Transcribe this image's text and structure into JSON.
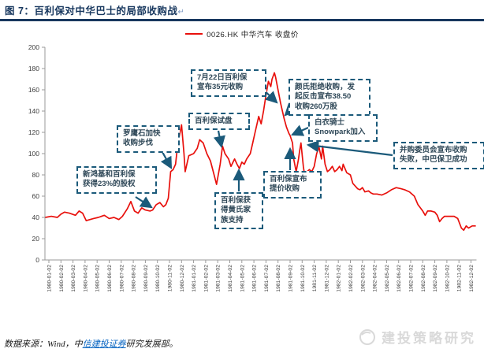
{
  "header": {
    "title": "图 7：百利保对中华巴士的局部收购战",
    "para_mark": "↵"
  },
  "legend": {
    "label": "0026.HK 中华汽车 收盘价",
    "line_color": "#e8100c"
  },
  "footer": {
    "prefix": "数据来源：Wind，中",
    "link": "信建投证券",
    "suffix": "研究发展部。"
  },
  "watermark": {
    "text": "建投策略研究"
  },
  "colors": {
    "accent_navy": "#17375e",
    "series_red": "#e8100c",
    "annotation_blue": "#1b5a7a",
    "axis_gray": "#9a9a9a",
    "tick_text": "#3f3f3f"
  },
  "annotations": [
    {
      "text": "罗鹰石加快\n收购步伐"
    },
    {
      "text": "新鸿基和百利保\n获得23%的股权"
    },
    {
      "text": "百利保试盘"
    },
    {
      "text": "7月22日百利保\n宣布35元收购"
    },
    {
      "text": "颜氏拒绝收购，发\n起反击宣布38.50\n收购260万股"
    },
    {
      "text": "白衣骑士\nSnowpark加入"
    },
    {
      "text": "百利保获\n得黄氏家\n族支持"
    },
    {
      "text": "百利保宣布\n提价收购"
    },
    {
      "text": "并购委员会宣布收购\n失败，中巴保卫成功"
    }
  ],
  "chart_data": {
    "type": "line",
    "title": "百利保对中华巴士的局部收购战",
    "legend_entries": [
      "0026.HK 中华汽车 收盘价"
    ],
    "legend_position": "top-center",
    "grid": false,
    "ylim": [
      0,
      200
    ],
    "y_ticks": [
      0,
      20,
      40,
      60,
      80,
      100,
      120,
      140,
      160,
      180,
      200
    ],
    "x_tick_labels": [
      "1980-01-02",
      "1980-02-02",
      "1980-03-02",
      "1980-04-02",
      "1980-05-02",
      "1980-06-02",
      "1980-07-02",
      "1980-08-02",
      "1980-09-02",
      "1980-10-02",
      "1980-11-02",
      "1980-12-02",
      "1981-01-02",
      "1981-02-02",
      "1981-03-02",
      "1981-04-02",
      "1981-05-02",
      "1981-06-02",
      "1981-07-02",
      "1981-08-02",
      "1981-09-02",
      "1981-10-02",
      "1981-11-02",
      "1981-12-02",
      "1982-01-02",
      "1982-02-02",
      "1982-03-02",
      "1982-04-02",
      "1982-05-02",
      "1982-06-02",
      "1982-07-02",
      "1982-08-02",
      "1982-09-02",
      "1982-10-02",
      "1982-11-02",
      "1982-12-02"
    ],
    "series": [
      {
        "name": "0026.HK 中华汽车 收盘价",
        "color": "#e8100c",
        "points_format": "[months_since_1980_01, price_hkd]",
        "points": [
          [
            -0.3,
            40
          ],
          [
            0.2,
            41
          ],
          [
            0.7,
            40
          ],
          [
            1.0,
            43
          ],
          [
            1.3,
            45
          ],
          [
            1.7,
            44
          ],
          [
            2.2,
            42
          ],
          [
            2.5,
            46
          ],
          [
            2.8,
            44
          ],
          [
            3.1,
            37
          ],
          [
            3.7,
            39
          ],
          [
            4.1,
            40
          ],
          [
            4.6,
            42
          ],
          [
            5.0,
            39
          ],
          [
            5.4,
            40
          ],
          [
            5.8,
            38
          ],
          [
            6.1,
            41
          ],
          [
            6.5,
            48
          ],
          [
            6.8,
            55
          ],
          [
            7.1,
            46
          ],
          [
            7.4,
            44
          ],
          [
            7.7,
            49
          ],
          [
            8.0,
            47
          ],
          [
            8.4,
            46
          ],
          [
            8.6,
            47
          ],
          [
            8.9,
            52
          ],
          [
            9.2,
            54
          ],
          [
            9.5,
            50
          ],
          [
            9.7,
            52
          ],
          [
            9.9,
            58
          ],
          [
            10.1,
            83
          ],
          [
            10.3,
            85
          ],
          [
            10.5,
            90
          ],
          [
            10.7,
            110
          ],
          [
            11.0,
            127
          ],
          [
            11.2,
            100
          ],
          [
            11.3,
            83
          ],
          [
            11.6,
            98
          ],
          [
            12.0,
            100
          ],
          [
            12.3,
            105
          ],
          [
            12.5,
            113
          ],
          [
            12.8,
            110
          ],
          [
            13.1,
            100
          ],
          [
            13.4,
            93
          ],
          [
            13.7,
            80
          ],
          [
            13.9,
            71
          ],
          [
            14.2,
            90
          ],
          [
            14.4,
            107
          ],
          [
            14.6,
            100
          ],
          [
            14.9,
            95
          ],
          [
            15.1,
            88
          ],
          [
            15.4,
            95
          ],
          [
            15.6,
            90
          ],
          [
            15.8,
            86
          ],
          [
            16.0,
            92
          ],
          [
            16.2,
            90
          ],
          [
            16.4,
            95
          ],
          [
            16.7,
            100
          ],
          [
            16.9,
            110
          ],
          [
            17.1,
            120
          ],
          [
            17.4,
            135
          ],
          [
            17.6,
            128
          ],
          [
            17.8,
            140
          ],
          [
            18.0,
            155
          ],
          [
            18.2,
            168
          ],
          [
            18.4,
            163
          ],
          [
            18.5,
            170
          ],
          [
            18.7,
            176
          ],
          [
            18.8,
            172
          ],
          [
            19.0,
            160
          ],
          [
            19.2,
            148
          ],
          [
            19.5,
            133
          ],
          [
            19.7,
            125
          ],
          [
            19.9,
            119
          ],
          [
            20.0,
            117
          ],
          [
            20.2,
            110
          ],
          [
            20.3,
            95
          ],
          [
            20.5,
            83
          ],
          [
            20.7,
            95
          ],
          [
            20.8,
            103
          ],
          [
            20.9,
            110
          ],
          [
            21.1,
            88
          ],
          [
            21.2,
            80
          ],
          [
            21.4,
            83
          ],
          [
            21.6,
            85
          ],
          [
            21.8,
            83
          ],
          [
            22.0,
            88
          ],
          [
            22.2,
            100
          ],
          [
            22.4,
            106
          ],
          [
            22.6,
            95
          ],
          [
            22.7,
            107
          ],
          [
            22.9,
            90
          ],
          [
            23.1,
            83
          ],
          [
            23.3,
            85
          ],
          [
            23.5,
            88
          ],
          [
            23.7,
            83
          ],
          [
            23.9,
            85
          ],
          [
            24.1,
            88
          ],
          [
            24.3,
            84
          ],
          [
            24.4,
            90
          ],
          [
            24.7,
            82
          ],
          [
            25.0,
            80
          ],
          [
            25.2,
            72
          ],
          [
            25.6,
            67
          ],
          [
            25.8,
            66
          ],
          [
            26.0,
            68
          ],
          [
            26.2,
            64
          ],
          [
            26.5,
            65
          ],
          [
            26.7,
            63
          ],
          [
            26.9,
            62
          ],
          [
            27.2,
            62
          ],
          [
            27.6,
            61
          ],
          [
            28.0,
            63
          ],
          [
            28.4,
            66
          ],
          [
            28.8,
            68
          ],
          [
            29.2,
            67
          ],
          [
            29.5,
            66
          ],
          [
            29.9,
            64
          ],
          [
            30.3,
            60
          ],
          [
            30.6,
            52
          ],
          [
            31.0,
            46
          ],
          [
            31.2,
            42
          ],
          [
            31.4,
            46
          ],
          [
            31.7,
            46
          ],
          [
            32.0,
            45
          ],
          [
            32.2,
            42
          ],
          [
            32.4,
            36
          ],
          [
            32.6,
            39
          ],
          [
            32.8,
            41
          ],
          [
            33.2,
            41
          ],
          [
            33.6,
            41
          ],
          [
            33.9,
            39
          ],
          [
            34.2,
            30
          ],
          [
            34.4,
            28
          ],
          [
            34.6,
            32
          ],
          [
            34.8,
            30
          ],
          [
            35.1,
            32
          ],
          [
            35.4,
            32
          ]
        ]
      }
    ]
  }
}
